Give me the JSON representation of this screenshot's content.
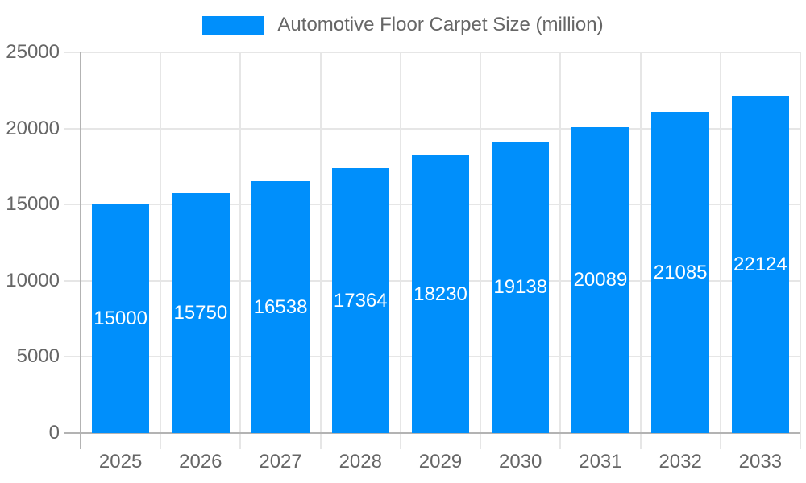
{
  "chart_data": {
    "type": "bar",
    "legend": {
      "label": "Automotive Floor Carpet Size (million)",
      "position": "top"
    },
    "categories": [
      "2025",
      "2026",
      "2027",
      "2028",
      "2029",
      "2030",
      "2031",
      "2032",
      "2033"
    ],
    "values": [
      15000,
      15750,
      16538,
      17364,
      18230,
      19138,
      20089,
      21085,
      22124
    ],
    "ylim": [
      0,
      25000
    ],
    "y_ticks": [
      0,
      5000,
      10000,
      15000,
      20000,
      25000
    ],
    "grid": "horizontal-and-vertical",
    "data_label_position": "inside-center",
    "colors": {
      "bar": "#008FFB",
      "data_label": "#FFFFFF",
      "axis_text": "#666666",
      "grid_light": "#E6E6E6",
      "grid_dark": "#B3B3B3",
      "background": "#FFFFFF"
    }
  }
}
